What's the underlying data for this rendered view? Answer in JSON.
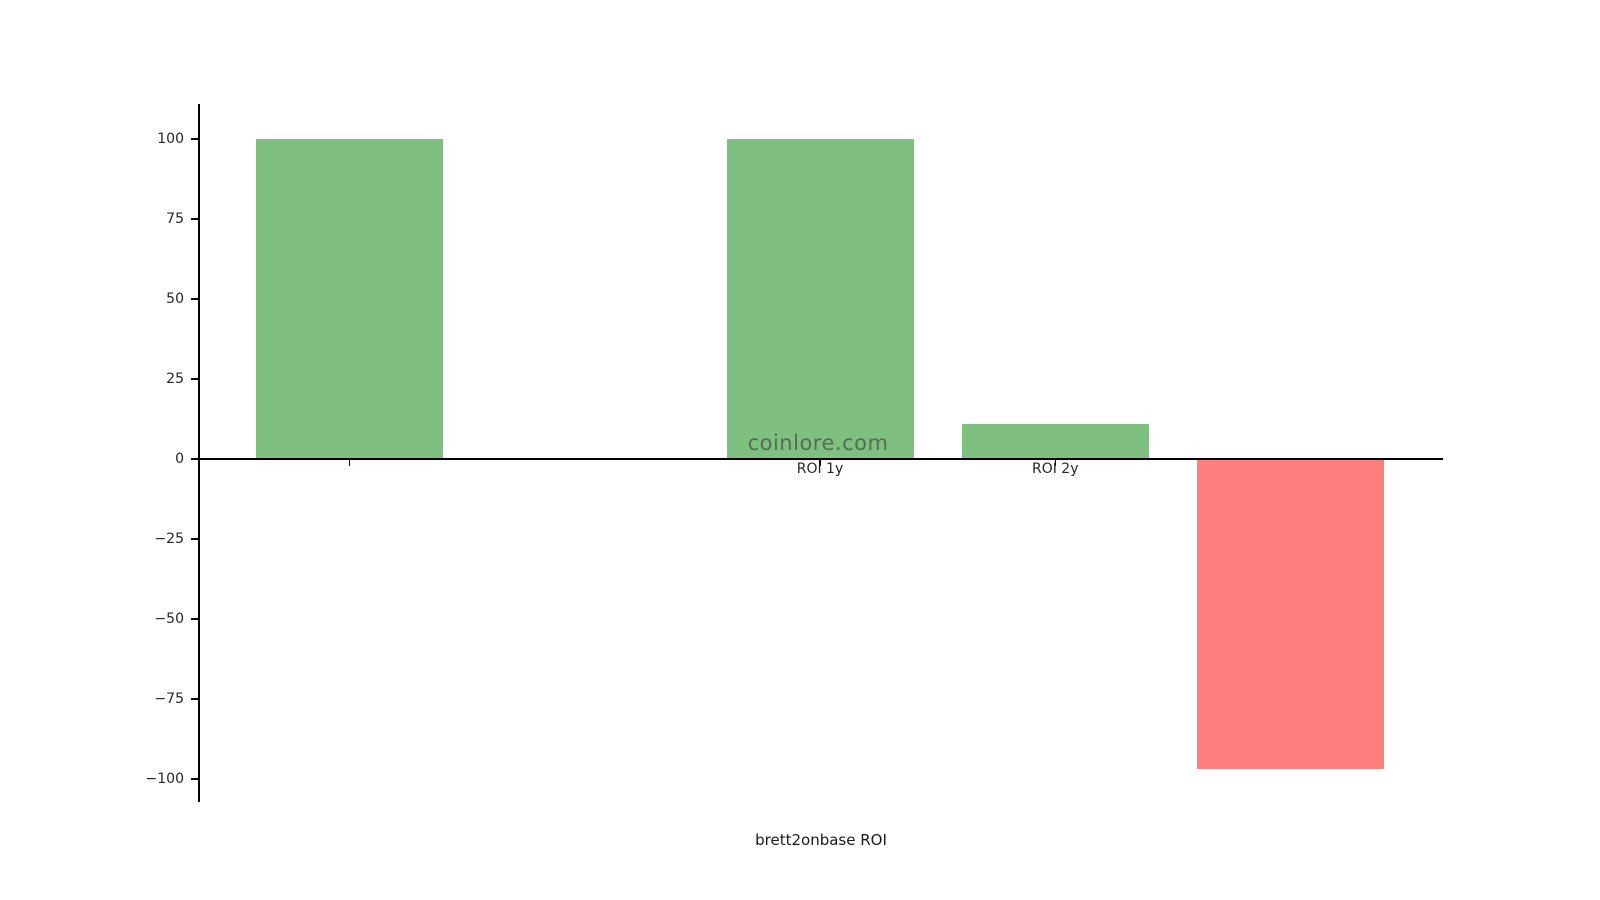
{
  "page": {
    "background": "#ffffff"
  },
  "chart_data": {
    "type": "bar",
    "title": "",
    "xlabel": "brett2onbase ROI",
    "ylabel": "",
    "watermark": "coinlore.com",
    "categories": [
      "",
      "",
      "ROI 1y",
      "ROI 2y",
      ""
    ],
    "values": [
      100,
      0,
      100,
      11,
      -97
    ],
    "bar_colors": [
      "#7fbf7f",
      "#7fbf7f",
      "#7fbf7f",
      "#7fbf7f",
      "#ff7f7f"
    ],
    "tick_visible": [
      true,
      false,
      true,
      true,
      false
    ],
    "yticks": [
      100,
      75,
      50,
      25,
      0,
      -25,
      -50,
      -75,
      -100
    ],
    "ytick_labels": [
      "100",
      "75",
      "50",
      "25",
      "0",
      "−25",
      "−50",
      "−75",
      "−100"
    ],
    "ylim": [
      -107,
      111
    ],
    "grid": false,
    "legend": null,
    "colors": {
      "positive": "#7fbf7f",
      "negative": "#ff7f7f",
      "axis": "#000000",
      "tick_text": "#262626",
      "watermark_text": "#2d2d2d"
    }
  }
}
